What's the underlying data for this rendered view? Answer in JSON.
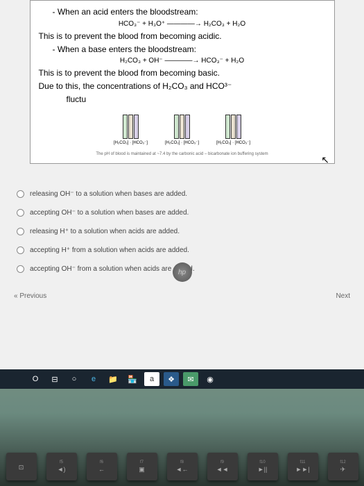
{
  "content": {
    "line1": "- When an acid enters the bloodstream:",
    "eq1_left": "HCO₃⁻ + H₃O⁺",
    "eq1_right": "H₂CO₃ + H₂O",
    "line2": "This is to prevent the blood from becoming acidic.",
    "line3": "- When a base enters the bloodstream:",
    "eq2_left": "H₂CO₃ + OH⁻",
    "eq2_right": "HCO₃⁻ + H₂O",
    "line4": "This is to prevent the blood from becoming basic.",
    "line5": "Due to this, the concentrations of H₂CO₃ and HCO³⁻",
    "fluctu": "fluctu",
    "chart_labels": [
      "[H₂CO₃] · [HCO₃⁻]",
      "[H₂CO₃] · [HCO₃⁻]",
      "[H₂CO₃] · [HCO₃⁻]"
    ],
    "caption": "The pH of blood is maintained at ~7.4 by the carbonic acid – bicarbonate ion buffering system"
  },
  "options": [
    "releasing OH⁻ to a solution when bases are added.",
    "accepting OH⁻ to a solution when bases are added.",
    "releasing H⁺ to a solution when acids are added.",
    "accepting H⁺ from a solution when acids are added.",
    "accepting OH⁻ from a solution when acids are added."
  ],
  "nav": {
    "prev": "« Previous",
    "next": "Next"
  },
  "taskbar": {
    "search": "O",
    "task": "⊟",
    "cortana": "○",
    "edge": "e",
    "folder": "📁",
    "store": "🏪",
    "app": "a",
    "dropbox": "❖",
    "mail": "✉",
    "chrome": "◉"
  },
  "hp": "hp",
  "keys": [
    {
      "top": "",
      "main": "⊡"
    },
    {
      "top": "f5",
      "main": "◄)"
    },
    {
      "top": "f6",
      "main": "←"
    },
    {
      "top": "f7",
      "main": "▣"
    },
    {
      "top": "f8",
      "main": "◄←"
    },
    {
      "top": "f9",
      "main": "◄◄"
    },
    {
      "top": "f10",
      "main": "►||"
    },
    {
      "top": "f11",
      "main": "►►|"
    },
    {
      "top": "f12",
      "main": "✈"
    }
  ]
}
